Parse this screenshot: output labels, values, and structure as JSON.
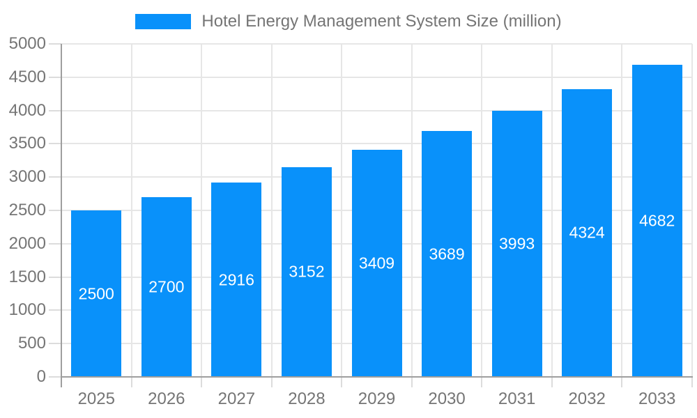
{
  "legend": {
    "label": "Hotel Energy Management System Size (million)"
  },
  "chart_data": {
    "type": "bar",
    "title": "Hotel Energy Management System Size (million)",
    "categories": [
      "2025",
      "2026",
      "2027",
      "2028",
      "2029",
      "2030",
      "2031",
      "2032",
      "2033"
    ],
    "values": [
      2500,
      2700,
      2916,
      3152,
      3409,
      3689,
      3993,
      4324,
      4682
    ],
    "series": [
      {
        "name": "Hotel Energy Management System Size (million)",
        "values": [
          2500,
          2700,
          2916,
          3152,
          3409,
          3689,
          3993,
          4324,
          4682
        ]
      }
    ],
    "xlabel": "",
    "ylabel": "",
    "ylim": [
      0,
      5000
    ],
    "ytick_step": 500,
    "yticks": [
      0,
      500,
      1000,
      1500,
      2000,
      2500,
      3000,
      3500,
      4000,
      4500,
      5000
    ],
    "grid": true,
    "legend_position": "top-center",
    "bar_labels_visible": true,
    "bar_label_position": "center"
  },
  "colors": {
    "bar": "#0991FA",
    "bar_label": "#FFFFFF",
    "text": "#757575",
    "gridline": "#E6E6E6",
    "tick": "#DCDCDC",
    "axis_line": "#9E9E9E",
    "background": "#FFFFFF"
  }
}
